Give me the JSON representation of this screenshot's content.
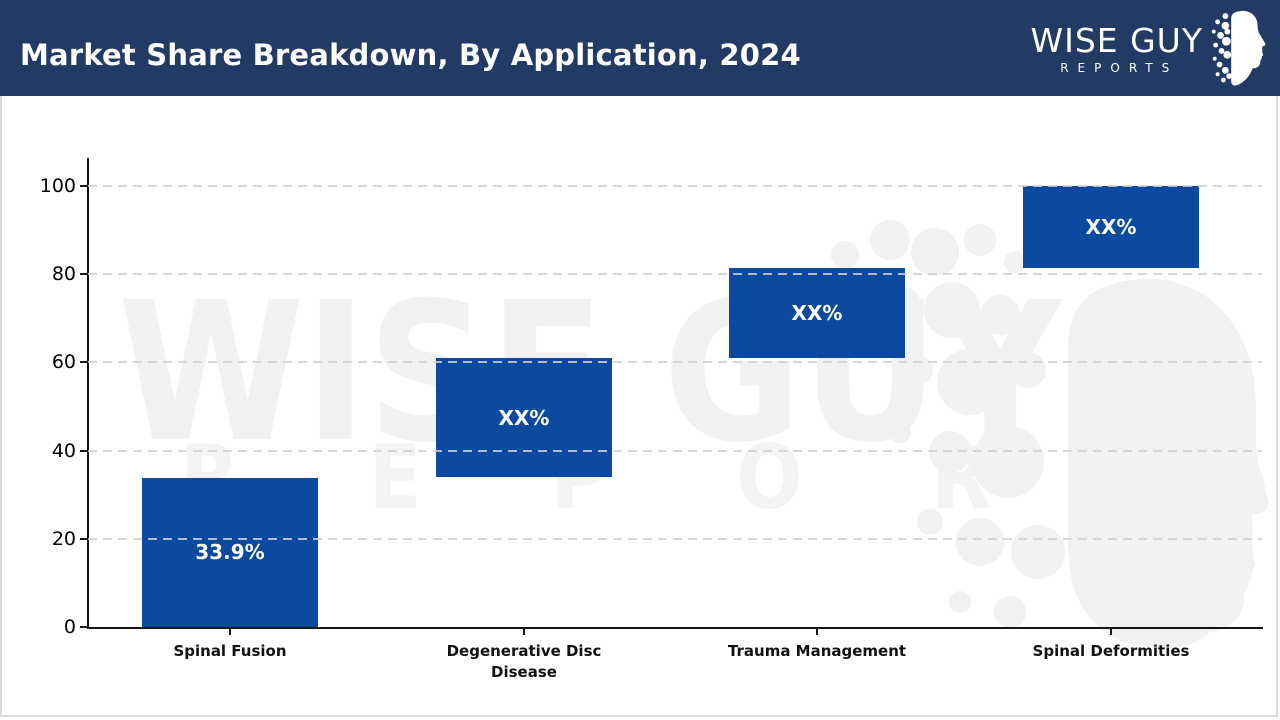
{
  "header": {
    "title": "Market Share Breakdown, By Application, 2024",
    "logo": {
      "name": "WISE GUY",
      "sub": "REPORTS"
    }
  },
  "watermark": {
    "line1": "WISE GUY",
    "line2": "R E P O R T S"
  },
  "chart_data": {
    "type": "bar",
    "variant": "waterfall",
    "title": "Market Share Breakdown, By Application, 2024",
    "xlabel": "",
    "ylabel": "",
    "categories": [
      "Spinal Fusion",
      "Degenerative Disc Disease",
      "Trauma Management",
      "Spinal Deformities"
    ],
    "segments": [
      {
        "category": "Spinal Fusion",
        "start": 0,
        "end": 33.9,
        "label": "33.9%"
      },
      {
        "category": "Degenerative Disc Disease",
        "start": 33.9,
        "end": 61.0,
        "label": "XX%"
      },
      {
        "category": "Trauma Management",
        "start": 61.0,
        "end": 81.4,
        "label": "XX%"
      },
      {
        "category": "Spinal Deformities",
        "start": 81.4,
        "end": 100,
        "label": "XX%"
      }
    ],
    "yticks": [
      0,
      20,
      40,
      60,
      80,
      100
    ],
    "ylim": [
      0,
      106
    ],
    "grid": {
      "axis": "y",
      "style": "dashed",
      "color": "#d9d9d9",
      "above_bars": true
    },
    "legend": "none",
    "colors": {
      "bar": "#0b4a9e",
      "header": "#223a64",
      "bar_label_text": "#ffffff",
      "axis_text": "#000000"
    }
  }
}
